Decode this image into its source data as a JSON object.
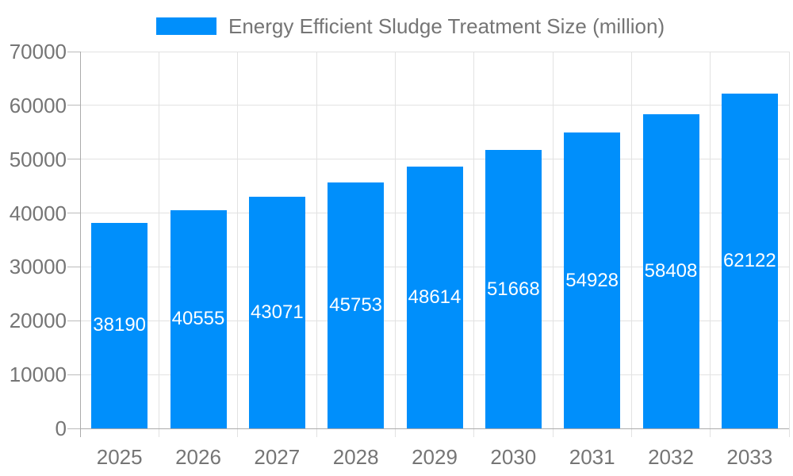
{
  "legend": {
    "label": "Energy Efficient Sludge Treatment Size (million)"
  },
  "chart_data": {
    "type": "bar",
    "title": "Energy Efficient Sludge Treatment Size (million)",
    "categories": [
      "2025",
      "2026",
      "2027",
      "2028",
      "2029",
      "2030",
      "2031",
      "2032",
      "2033"
    ],
    "values": [
      38190,
      40555,
      43071,
      45753,
      48614,
      51668,
      54928,
      58408,
      62122
    ],
    "data_labels": [
      "38190",
      "40555",
      "43071",
      "45753",
      "48614",
      "51668",
      "54928",
      "58408",
      "62122"
    ],
    "xlabel": "",
    "ylabel": "",
    "ylim": [
      0,
      70000
    ],
    "ytick_step": 10000,
    "ytick_labels": [
      "0",
      "10000",
      "20000",
      "30000",
      "40000",
      "50000",
      "60000",
      "70000"
    ],
    "grid": true,
    "legend_position": "top",
    "colors": {
      "bar": "#008FFB",
      "data_label": "#ffffff",
      "axis_label": "#757575",
      "gridline": "#e2e2e2",
      "axis_line": "#ababab",
      "tick": "#bbbbbb",
      "background": "#ffffff"
    }
  }
}
